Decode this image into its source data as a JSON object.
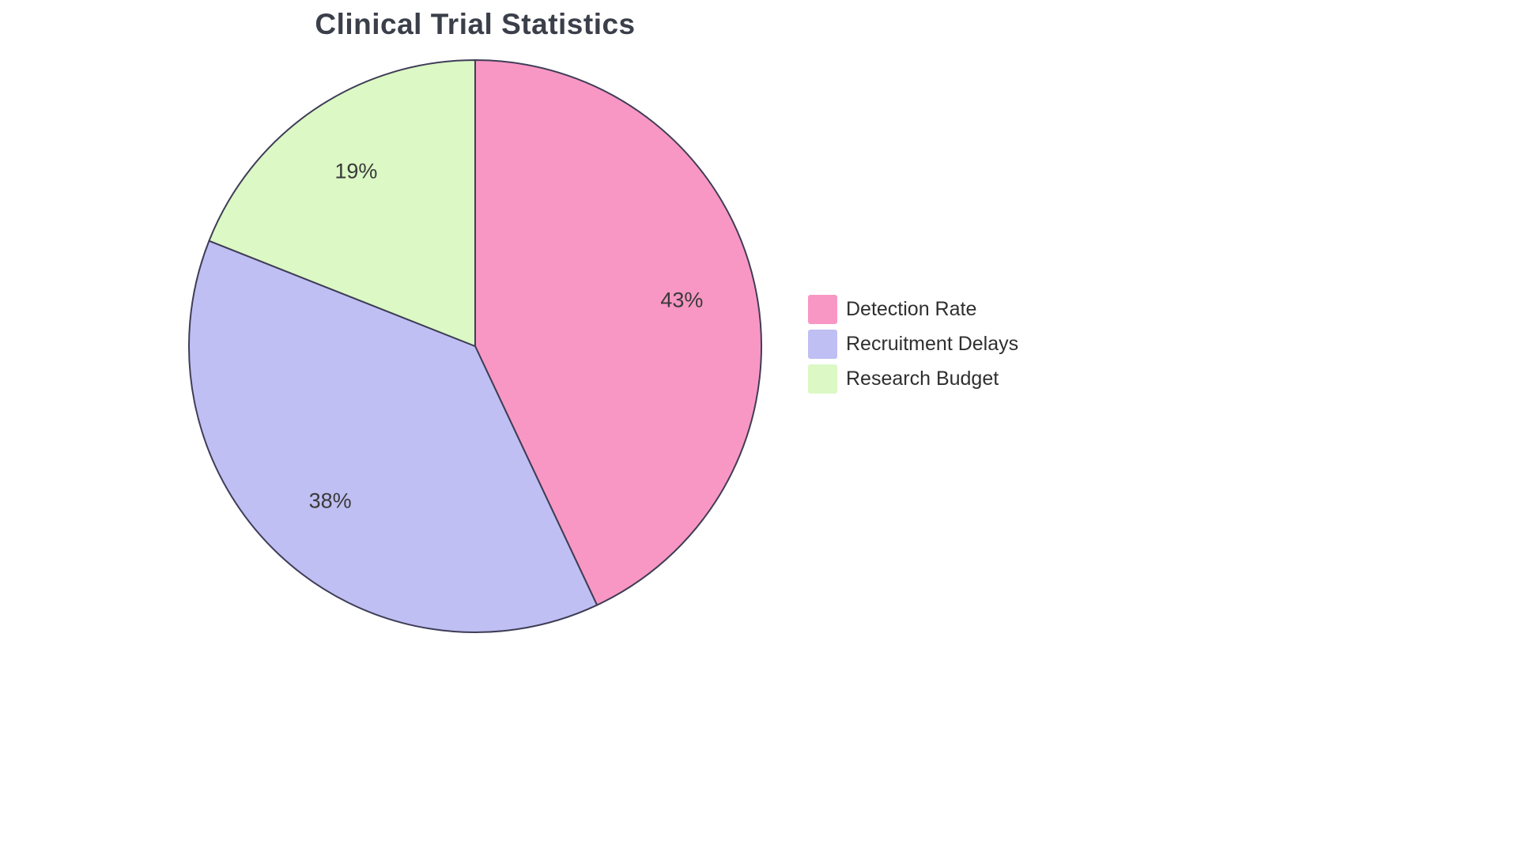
{
  "chart_data": {
    "type": "pie",
    "title": "Clinical Trial Statistics",
    "labels": [
      "Detection Rate",
      "Recruitment Delays",
      "Research Budget"
    ],
    "values": [
      43,
      38,
      19
    ],
    "value_labels": [
      "43%",
      "38%",
      "19%"
    ],
    "colors": [
      "#F997C4",
      "#BFBFF3",
      "#DBF8C5"
    ],
    "stroke_color": "#3F3D56",
    "label_color": "#3A3A3A",
    "legend_position": "right",
    "start_angle_deg": 0,
    "direction": "clockwise",
    "background": "#FFFFFF"
  }
}
